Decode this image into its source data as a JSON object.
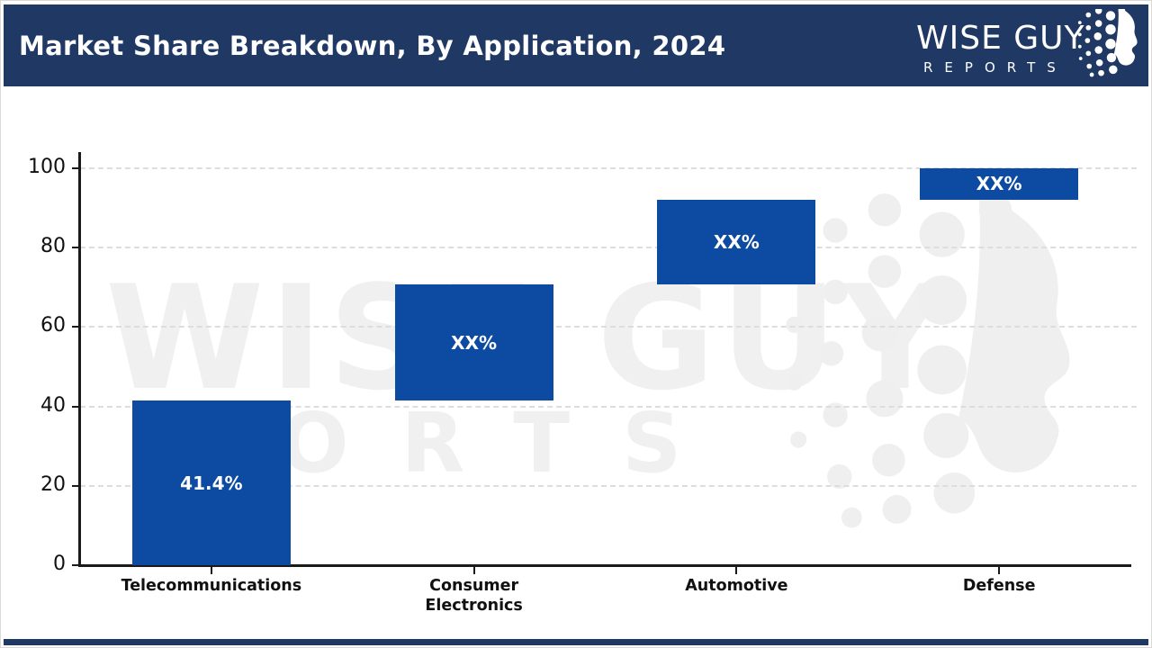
{
  "header": {
    "title": "Market Share Breakdown, By Application, 2024",
    "logo": {
      "line1": "WISE GUY",
      "line2": "REPORTS"
    }
  },
  "watermark": {
    "line1": "WISE GUY",
    "line2": "PORTS"
  },
  "chart_data": {
    "type": "bar",
    "subtype": "waterfall",
    "title": "Market Share Breakdown, By Application, 2024",
    "categories": [
      "Telecommunications",
      "Consumer\nElectronics",
      "Automotive",
      "Defense"
    ],
    "segments": [
      {
        "category": "Telecommunications",
        "start": 0,
        "end": 41.4,
        "label": "41.4%"
      },
      {
        "category": "Consumer Electronics",
        "start": 41.4,
        "end": 70.7,
        "label": "XX%"
      },
      {
        "category": "Automotive",
        "start": 70.7,
        "end": 92.1,
        "label": "XX%"
      },
      {
        "category": "Defense",
        "start": 92.1,
        "end": 100,
        "label": "XX%"
      }
    ],
    "yticks": [
      0,
      20,
      40,
      60,
      80,
      100
    ],
    "ylim": [
      0,
      104
    ],
    "xlabel": "",
    "ylabel": "",
    "grid": "horizontal-dashed",
    "legend": "none",
    "colors": {
      "bar": "#0d4aa2",
      "bar_label": "#ffffff",
      "grid": "#dddddd",
      "axis": "#1a1a1a",
      "tick_text": "#111111",
      "header_bg": "#1f3864",
      "watermark": "#f0f0f0"
    }
  }
}
